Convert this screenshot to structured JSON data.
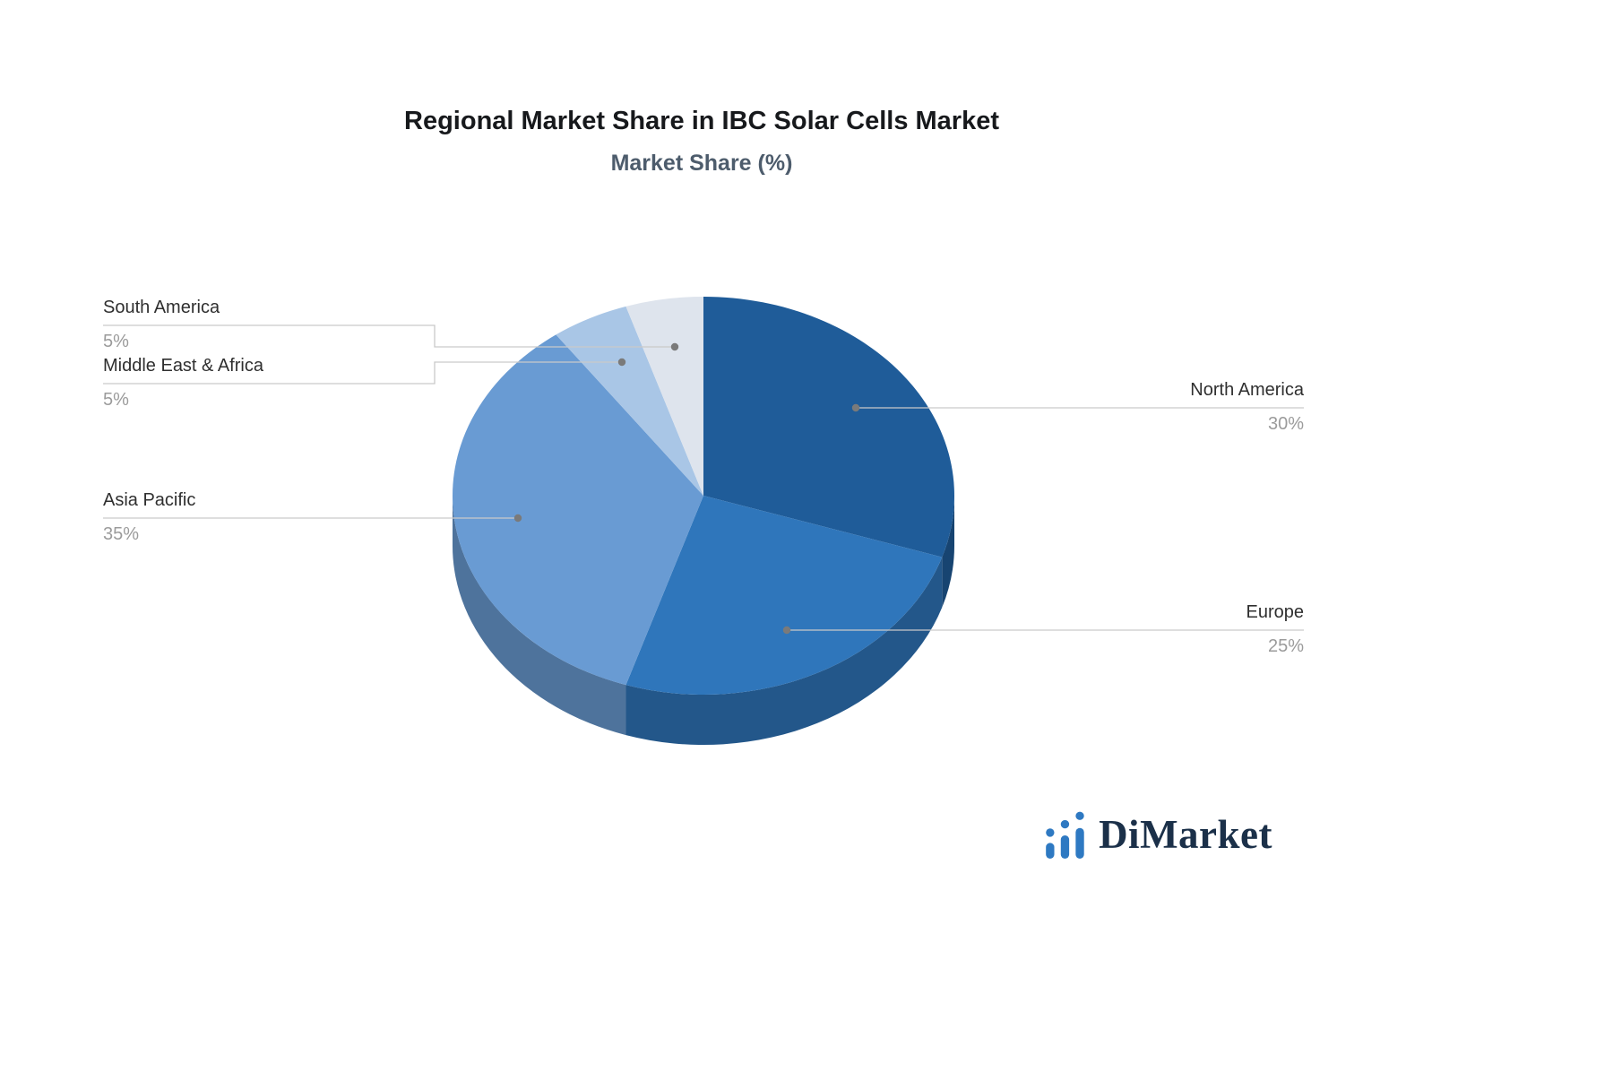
{
  "chart_data": {
    "type": "pie",
    "title": "Regional Market Share in IBC Solar Cells Market",
    "subtitle": "Market Share (%)",
    "unit": "%",
    "effect_3d": true,
    "legend_position": "connector-labels",
    "slices": [
      {
        "label": "North America",
        "value": 30,
        "display": "30%",
        "color": "#1f5c99"
      },
      {
        "label": "Europe",
        "value": 25,
        "display": "25%",
        "color": "#2f76bb"
      },
      {
        "label": "Asia Pacific",
        "value": 35,
        "display": "35%",
        "color": "#699bd3"
      },
      {
        "label": "Middle East & Africa",
        "value": 5,
        "display": "5%",
        "color": "#a9c6e6"
      },
      {
        "label": "South America",
        "value": 5,
        "display": "5%",
        "color": "#dee4ed"
      }
    ]
  },
  "branding": {
    "logo_text": "DiMarket",
    "logo_color": "#1b3049",
    "icon_color": "#2e79c2"
  },
  "colors": {
    "connector": "#c9c9c9",
    "dot": "#7a7a7a",
    "label_text": "#2f2f2f",
    "value_text": "#9b9b9b",
    "title": "#17191c",
    "subtitle": "#4d5c6c",
    "background": "#ffffff"
  }
}
